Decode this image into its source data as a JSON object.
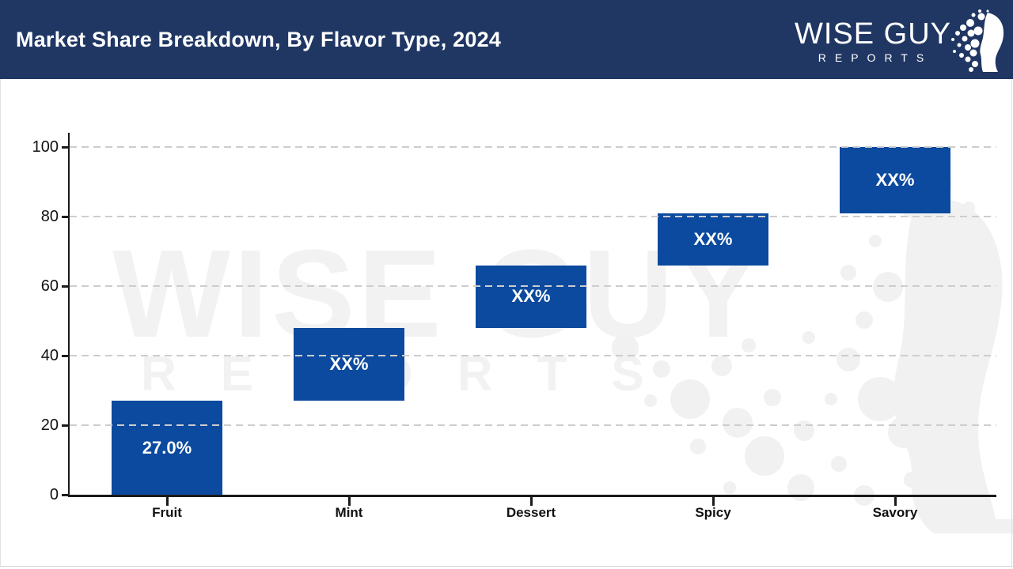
{
  "header": {
    "title": "Market Share Breakdown, By Flavor Type, 2024",
    "logo": {
      "brand": "WISE GUY",
      "sub": "REPORTS"
    }
  },
  "watermark": {
    "line1": "WISE GUY",
    "line2": "REPORTS"
  },
  "colors": {
    "header_bg": "#203764",
    "bar_fill": "#0b4a9e",
    "bar_label_text": "#ffffff",
    "grid_line": "#cdcdcd",
    "axis": "#1a1a1a",
    "watermark": "#f2f2f2",
    "title_text": "#ffffff"
  },
  "chart_data": {
    "type": "bar",
    "subtype": "waterfall-floating-bars",
    "title": "Market Share Breakdown, By Flavor Type, 2024",
    "categories": [
      "Fruit",
      "Mint",
      "Dessert",
      "Spicy",
      "Savory"
    ],
    "segments": [
      {
        "category": "Fruit",
        "start": 0,
        "end": 27,
        "label": "27.0%"
      },
      {
        "category": "Mint",
        "start": 27,
        "end": 48,
        "label": "XX%"
      },
      {
        "category": "Dessert",
        "start": 48,
        "end": 66,
        "label": "XX%"
      },
      {
        "category": "Spicy",
        "start": 66,
        "end": 81,
        "label": "XX%"
      },
      {
        "category": "Savory",
        "start": 81,
        "end": 100,
        "label": "XX%"
      }
    ],
    "xlabel": "",
    "ylabel": "",
    "ylim": [
      0,
      100
    ],
    "yticks": [
      0,
      20,
      40,
      60,
      80,
      100
    ],
    "grid": "horizontal-dashed",
    "legend": null
  }
}
